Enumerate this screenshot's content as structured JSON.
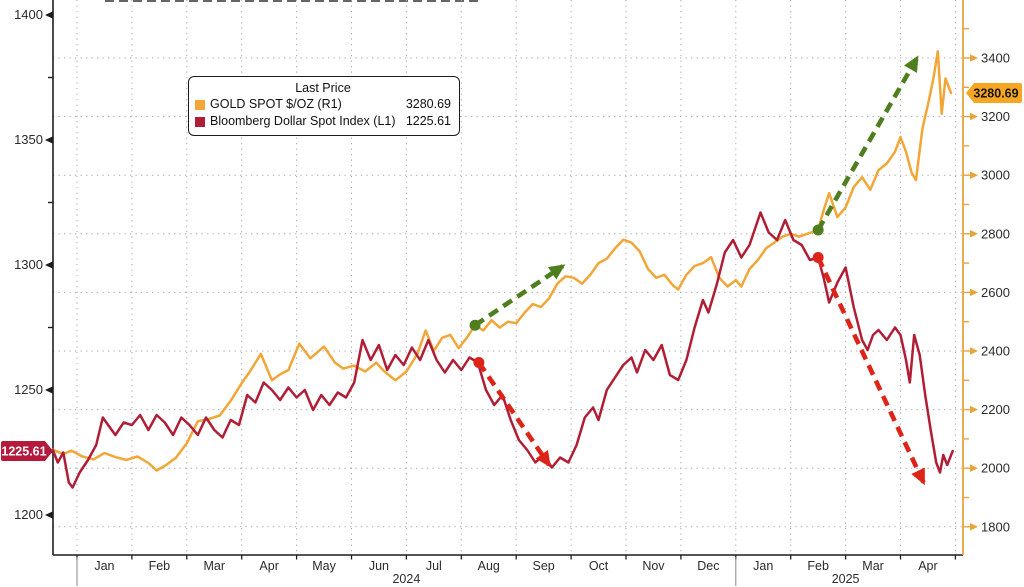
{
  "chart": {
    "legend": {
      "title": "Last Price",
      "series": [
        {
          "label": "GOLD SPOT $/OZ  (R1)",
          "value": "3280.69",
          "color": "#F2A637"
        },
        {
          "label": "Bloomberg Dollar Spot Index  (L1)",
          "value": "1225.61",
          "color": "#B01E36"
        }
      ]
    },
    "axes": {
      "left": {
        "major_ticks": [
          1400,
          1350,
          1300,
          1250,
          1200
        ],
        "minor_ticks": [
          1375,
          1325,
          1275,
          1225
        ],
        "color": "#1d1d1d",
        "label_color": "#2b2b2b",
        "badge": {
          "text": "1225.61",
          "value": 1225.61,
          "bg": "#B5193B",
          "fg": "#ffffff"
        }
      },
      "right": {
        "major_ticks": [
          3400,
          3200,
          3000,
          2800,
          2600,
          2400,
          2200,
          2000,
          1800
        ],
        "minor_ticks": [
          3500,
          3300,
          3100,
          2900,
          2700,
          2500,
          2300,
          2100,
          1900
        ],
        "color": "#E8A33C",
        "label_color": "#2b2b2b",
        "badge": {
          "text": "3280.69",
          "value": 3280.69,
          "bg": "#F7A621",
          "fg": "#151515"
        }
      },
      "x": {
        "month_labels": [
          "Jan",
          "Feb",
          "Mar",
          "Apr",
          "May",
          "Jun",
          "Jul",
          "Aug",
          "Sep",
          "Oct",
          "Nov",
          "Dec",
          "Jan",
          "Feb",
          "Mar",
          "Apr"
        ],
        "year_labels": [
          "2024",
          "2025"
        ],
        "label_color": "#2b2b2b"
      }
    },
    "chart_data": {
      "type": "line",
      "x_unit": "months since 2024-01-01",
      "x_range": [
        -0.44,
        16
      ],
      "ylim_left": [
        1184,
        1406
      ],
      "ylim_right": [
        1704,
        3598
      ],
      "grid": "dotted, vertical at month boundaries, horizontal every 200 right-axis units",
      "legend_position": "top-left-inside",
      "series": [
        {
          "name": "GOLD SPOT $/OZ",
          "id": "R1",
          "axis": "right",
          "color": "#F2A637",
          "last": 3280.69,
          "points": [
            [
              -0.44,
              2063
            ],
            [
              -0.25,
              2048
            ],
            [
              -0.1,
              2060
            ],
            [
              0.1,
              2040
            ],
            [
              0.3,
              2030
            ],
            [
              0.5,
              2052
            ],
            [
              0.7,
              2038
            ],
            [
              0.9,
              2028
            ],
            [
              1.1,
              2040
            ],
            [
              1.3,
              2018
            ],
            [
              1.45,
              1992
            ],
            [
              1.6,
              2008
            ],
            [
              1.8,
              2035
            ],
            [
              2.0,
              2085
            ],
            [
              2.2,
              2160
            ],
            [
              2.4,
              2168
            ],
            [
              2.6,
              2180
            ],
            [
              2.8,
              2230
            ],
            [
              3.0,
              2290
            ],
            [
              3.15,
              2330
            ],
            [
              3.35,
              2390
            ],
            [
              3.55,
              2300
            ],
            [
              3.7,
              2320
            ],
            [
              3.85,
              2335
            ],
            [
              4.05,
              2425
            ],
            [
              4.25,
              2375
            ],
            [
              4.5,
              2415
            ],
            [
              4.7,
              2360
            ],
            [
              4.85,
              2340
            ],
            [
              5.05,
              2350
            ],
            [
              5.25,
              2330
            ],
            [
              5.45,
              2360
            ],
            [
              5.6,
              2330
            ],
            [
              5.8,
              2300
            ],
            [
              6.0,
              2330
            ],
            [
              6.2,
              2390
            ],
            [
              6.35,
              2470
            ],
            [
              6.5,
              2400
            ],
            [
              6.65,
              2445
            ],
            [
              6.8,
              2455
            ],
            [
              6.95,
              2410
            ],
            [
              7.1,
              2445
            ],
            [
              7.25,
              2488
            ],
            [
              7.4,
              2470
            ],
            [
              7.55,
              2505
            ],
            [
              7.7,
              2480
            ],
            [
              7.85,
              2500
            ],
            [
              8.0,
              2495
            ],
            [
              8.15,
              2530
            ],
            [
              8.3,
              2560
            ],
            [
              8.45,
              2550
            ],
            [
              8.6,
              2580
            ],
            [
              8.75,
              2630
            ],
            [
              8.9,
              2655
            ],
            [
              9.05,
              2650
            ],
            [
              9.2,
              2630
            ],
            [
              9.35,
              2660
            ],
            [
              9.5,
              2700
            ],
            [
              9.65,
              2715
            ],
            [
              9.8,
              2750
            ],
            [
              9.95,
              2780
            ],
            [
              10.1,
              2770
            ],
            [
              10.25,
              2740
            ],
            [
              10.4,
              2680
            ],
            [
              10.55,
              2650
            ],
            [
              10.7,
              2660
            ],
            [
              10.85,
              2625
            ],
            [
              10.95,
              2610
            ],
            [
              11.1,
              2660
            ],
            [
              11.25,
              2690
            ],
            [
              11.4,
              2700
            ],
            [
              11.55,
              2720
            ],
            [
              11.7,
              2650
            ],
            [
              11.85,
              2620
            ],
            [
              12.0,
              2642
            ],
            [
              12.1,
              2620
            ],
            [
              12.25,
              2680
            ],
            [
              12.4,
              2710
            ],
            [
              12.55,
              2750
            ],
            [
              12.7,
              2770
            ],
            [
              12.85,
              2790
            ],
            [
              13.0,
              2800
            ],
            [
              13.15,
              2790
            ],
            [
              13.3,
              2800
            ],
            [
              13.5,
              2813
            ],
            [
              13.6,
              2880
            ],
            [
              13.7,
              2939
            ],
            [
              13.85,
              2857
            ],
            [
              14.0,
              2890
            ],
            [
              14.15,
              2960
            ],
            [
              14.3,
              2993
            ],
            [
              14.45,
              2950
            ],
            [
              14.6,
              3017
            ],
            [
              14.75,
              3040
            ],
            [
              14.9,
              3080
            ],
            [
              15.0,
              3130
            ],
            [
              15.1,
              3080
            ],
            [
              15.2,
              3010
            ],
            [
              15.28,
              2983
            ],
            [
              15.4,
              3160
            ],
            [
              15.5,
              3240
            ],
            [
              15.6,
              3330
            ],
            [
              15.68,
              3423
            ],
            [
              15.75,
              3210
            ],
            [
              15.82,
              3330
            ],
            [
              15.92,
              3281
            ]
          ]
        },
        {
          "name": "Bloomberg Dollar Spot Index",
          "id": "L1",
          "axis": "left",
          "color": "#B01E36",
          "last": 1225.61,
          "points": [
            [
              -0.44,
              1226
            ],
            [
              -0.35,
              1221
            ],
            [
              -0.25,
              1225
            ],
            [
              -0.15,
              1213
            ],
            [
              -0.08,
              1211
            ],
            [
              0.05,
              1217
            ],
            [
              0.2,
              1222
            ],
            [
              0.35,
              1228
            ],
            [
              0.47,
              1239
            ],
            [
              0.6,
              1235
            ],
            [
              0.7,
              1232
            ],
            [
              0.85,
              1237
            ],
            [
              1.0,
              1236
            ],
            [
              1.15,
              1240
            ],
            [
              1.3,
              1234
            ],
            [
              1.45,
              1240
            ],
            [
              1.6,
              1237
            ],
            [
              1.75,
              1232
            ],
            [
              1.9,
              1239
            ],
            [
              2.05,
              1236
            ],
            [
              2.2,
              1232
            ],
            [
              2.35,
              1239
            ],
            [
              2.5,
              1234
            ],
            [
              2.65,
              1231
            ],
            [
              2.8,
              1238
            ],
            [
              2.95,
              1236
            ],
            [
              3.1,
              1248
            ],
            [
              3.25,
              1245
            ],
            [
              3.4,
              1253
            ],
            [
              3.55,
              1250
            ],
            [
              3.7,
              1246
            ],
            [
              3.85,
              1251
            ],
            [
              4.0,
              1247
            ],
            [
              4.15,
              1250
            ],
            [
              4.3,
              1242
            ],
            [
              4.45,
              1248
            ],
            [
              4.6,
              1244
            ],
            [
              4.75,
              1249
            ],
            [
              4.9,
              1247
            ],
            [
              5.05,
              1253
            ],
            [
              5.2,
              1270
            ],
            [
              5.35,
              1262
            ],
            [
              5.5,
              1268
            ],
            [
              5.65,
              1258
            ],
            [
              5.8,
              1264
            ],
            [
              5.95,
              1260
            ],
            [
              6.1,
              1267
            ],
            [
              6.25,
              1262
            ],
            [
              6.4,
              1270
            ],
            [
              6.55,
              1262
            ],
            [
              6.7,
              1257
            ],
            [
              6.85,
              1262
            ],
            [
              7.0,
              1258
            ],
            [
              7.15,
              1263
            ],
            [
              7.3,
              1261
            ],
            [
              7.45,
              1250
            ],
            [
              7.6,
              1244
            ],
            [
              7.75,
              1248
            ],
            [
              7.9,
              1238
            ],
            [
              8.05,
              1230
            ],
            [
              8.2,
              1226
            ],
            [
              8.35,
              1221
            ],
            [
              8.5,
              1224
            ],
            [
              8.65,
              1219
            ],
            [
              8.8,
              1223
            ],
            [
              8.95,
              1221
            ],
            [
              9.1,
              1228
            ],
            [
              9.25,
              1239
            ],
            [
              9.4,
              1243
            ],
            [
              9.5,
              1238
            ],
            [
              9.65,
              1250
            ],
            [
              9.8,
              1255
            ],
            [
              9.95,
              1260
            ],
            [
              10.1,
              1263
            ],
            [
              10.2,
              1257
            ],
            [
              10.35,
              1266
            ],
            [
              10.5,
              1262
            ],
            [
              10.65,
              1268
            ],
            [
              10.8,
              1256
            ],
            [
              10.95,
              1254
            ],
            [
              11.1,
              1262
            ],
            [
              11.25,
              1275
            ],
            [
              11.4,
              1286
            ],
            [
              11.5,
              1281
            ],
            [
              11.65,
              1292
            ],
            [
              11.8,
              1305
            ],
            [
              11.95,
              1310
            ],
            [
              12.1,
              1303
            ],
            [
              12.25,
              1308
            ],
            [
              12.45,
              1321
            ],
            [
              12.6,
              1313
            ],
            [
              12.75,
              1310
            ],
            [
              12.9,
              1318
            ],
            [
              13.05,
              1310
            ],
            [
              13.2,
              1308
            ],
            [
              13.35,
              1302
            ],
            [
              13.5,
              1303
            ],
            [
              13.6,
              1295
            ],
            [
              13.7,
              1285
            ],
            [
              13.85,
              1293
            ],
            [
              14.0,
              1299
            ],
            [
              14.15,
              1283
            ],
            [
              14.3,
              1270
            ],
            [
              14.4,
              1266
            ],
            [
              14.5,
              1272
            ],
            [
              14.6,
              1274
            ],
            [
              14.75,
              1270
            ],
            [
              14.9,
              1275
            ],
            [
              15.0,
              1272
            ],
            [
              15.1,
              1262
            ],
            [
              15.17,
              1253
            ],
            [
              15.25,
              1272
            ],
            [
              15.35,
              1264
            ],
            [
              15.45,
              1248
            ],
            [
              15.55,
              1234
            ],
            [
              15.65,
              1221
            ],
            [
              15.72,
              1217
            ],
            [
              15.78,
              1224
            ],
            [
              15.85,
              1220
            ],
            [
              15.95,
              1225.61
            ]
          ]
        }
      ],
      "annotations": [
        {
          "type": "trend-arrow",
          "direction": "up",
          "color": "#4F7E1E",
          "axis": "right",
          "from": [
            7.25,
            2488
          ],
          "to": [
            8.85,
            2690
          ]
        },
        {
          "type": "trend-arrow",
          "direction": "down",
          "color": "#DD2418",
          "axis": "left",
          "from": [
            7.32,
            1261
          ],
          "to": [
            8.6,
            1220
          ]
        },
        {
          "type": "trend-arrow",
          "direction": "up",
          "color": "#4F7E1E",
          "axis": "right",
          "from": [
            13.5,
            2813
          ],
          "to": [
            15.3,
            3400
          ]
        },
        {
          "type": "trend-arrow",
          "direction": "down",
          "color": "#DD2418",
          "axis": "left",
          "from": [
            13.5,
            1303
          ],
          "to": [
            15.42,
            1213
          ]
        }
      ]
    }
  }
}
